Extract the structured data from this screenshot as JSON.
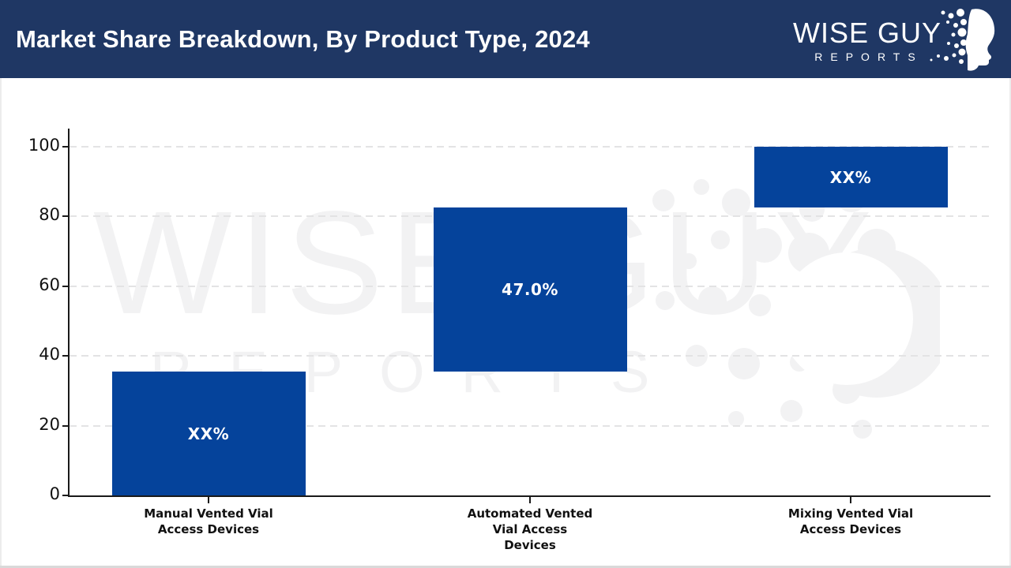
{
  "header": {
    "title": "Market Share Breakdown, By Product Type, 2024",
    "background_color": "#1f3764",
    "logo": {
      "name": "WISE GUY",
      "subtitle": "REPORTS"
    }
  },
  "watermark": {
    "line1": "WISE GUY",
    "line2": "REPORTS"
  },
  "chart_data": {
    "type": "bar",
    "subtype": "waterfall-stacked-breakdown",
    "title": "Market Share Breakdown, By Product Type, 2024",
    "categories": [
      "Manual Vented Vial Access Devices",
      "Automated Vented Vial Access Devices",
      "Mixing Vented Vial Access Devices"
    ],
    "category_label_lines": [
      [
        "Manual Vented Vial",
        "Access Devices"
      ],
      [
        "Automated Vented",
        "Vial Access",
        "Devices"
      ],
      [
        "Mixing Vented Vial",
        "Access Devices"
      ]
    ],
    "bars": [
      {
        "category": "Manual Vented Vial Access Devices",
        "start": 0,
        "end": 35.5,
        "label": "XX%",
        "value": null
      },
      {
        "category": "Automated Vented Vial Access Devices",
        "start": 35.5,
        "end": 82.5,
        "label": "47.0%",
        "value": 47.0
      },
      {
        "category": "Mixing Vented Vial Access Devices",
        "start": 82.5,
        "end": 100,
        "label": "XX%",
        "value": null
      }
    ],
    "ylim": [
      0,
      100
    ],
    "yticks": [
      0,
      20,
      40,
      60,
      80,
      100
    ],
    "xlabel": "",
    "ylabel": "",
    "grid": "horizontal-dashed",
    "legend": "none",
    "bar_color": "#05439b",
    "bar_label_color": "#ffffff"
  }
}
